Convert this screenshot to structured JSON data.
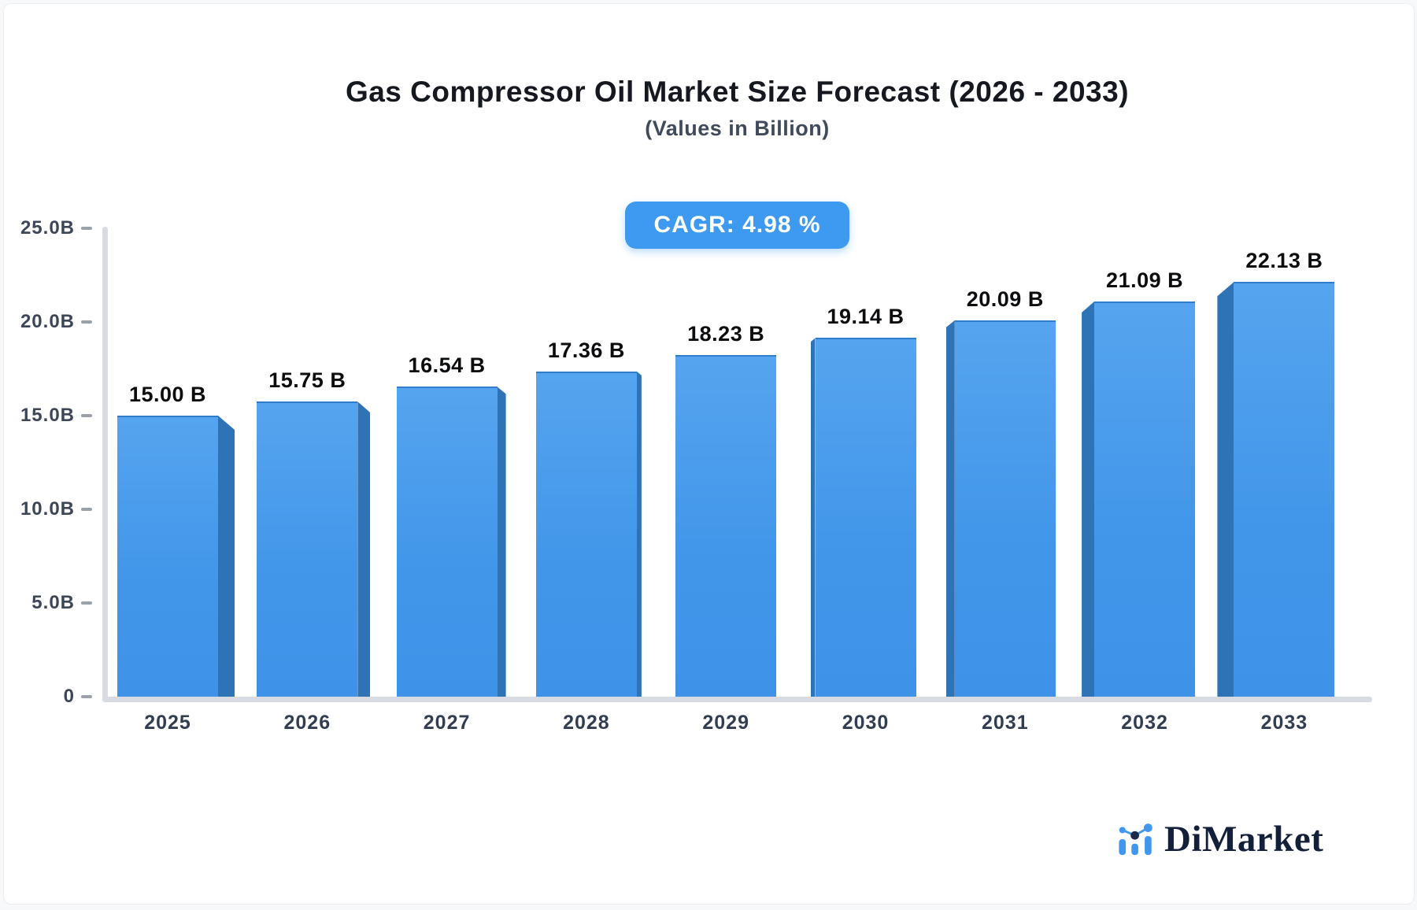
{
  "chart_data": {
    "type": "bar",
    "title": "Gas Compressor Oil Market Size Forecast (2026 - 2033)",
    "subtitle": "(Values in Billion)",
    "annotation": "CAGR: 4.98 %",
    "categories": [
      "2025",
      "2026",
      "2027",
      "2028",
      "2029",
      "2030",
      "2031",
      "2032",
      "2033"
    ],
    "values": [
      15.0,
      15.75,
      16.54,
      17.36,
      18.23,
      19.14,
      20.09,
      21.09,
      22.13
    ],
    "value_labels": [
      "15.00 B",
      "15.75 B",
      "16.54 B",
      "17.36 B",
      "18.23 B",
      "19.14 B",
      "20.09 B",
      "21.09 B",
      "22.13 B"
    ],
    "xlabel": "",
    "ylabel": "",
    "ylim": [
      0,
      25
    ],
    "y_ticks": [
      {
        "value": 25,
        "label": "25.0B"
      },
      {
        "value": 20,
        "label": "20.0B"
      },
      {
        "value": 15,
        "label": "15.0B"
      },
      {
        "value": 10,
        "label": "10.0B"
      },
      {
        "value": 5,
        "label": "5.0B"
      },
      {
        "value": 0,
        "label": "0"
      }
    ],
    "grid": false,
    "legend": false,
    "bar_color": "#4397ea",
    "bar_side_color": "#2d73b6",
    "style": "pseudo-3d bars facing a central vanishing point"
  },
  "badge": {
    "color": "#3d9af0"
  },
  "brand": {
    "name": "DiMarket",
    "icon": "bar-chart-logo-icon",
    "color": "#14203a",
    "accent": "#4196f0"
  }
}
